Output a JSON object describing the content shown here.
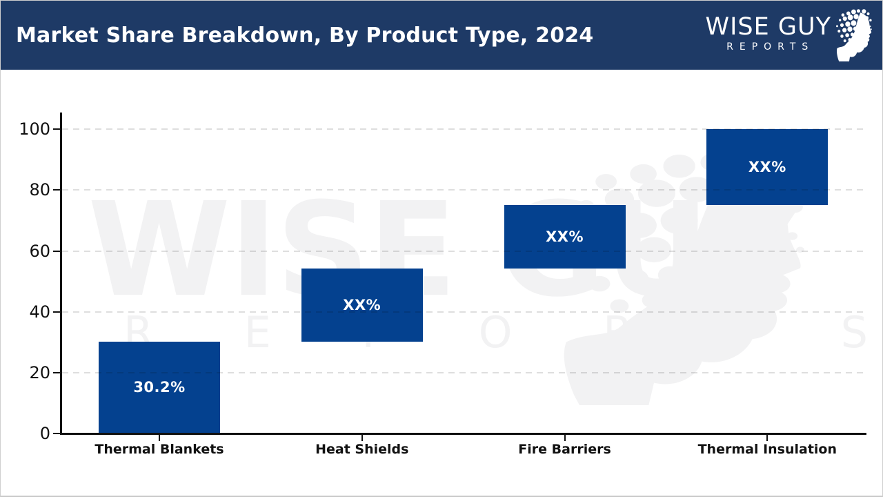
{
  "header": {
    "title": "Market Share Breakdown, By Product Type, 2024",
    "logo_line1": "WISE GUY",
    "logo_line2": "REPORTS"
  },
  "watermark": {
    "line1": "WISE GUY",
    "line2": "R E P O R T S"
  },
  "chart_data": {
    "type": "bar",
    "subtype": "waterfall",
    "title": "Market Share Breakdown, By Product Type, 2024",
    "categories": [
      "Thermal Blankets",
      "Heat Shields",
      "Fire Barriers",
      "Thermal Insulation"
    ],
    "segments": [
      {
        "category": "Thermal Blankets",
        "start": 0,
        "end": 30.2,
        "label": "30.2%"
      },
      {
        "category": "Heat Shields",
        "start": 30.2,
        "end": 54.3,
        "label": "XX%"
      },
      {
        "category": "Fire Barriers",
        "start": 54.3,
        "end": 75.2,
        "label": "XX%"
      },
      {
        "category": "Thermal Insulation",
        "start": 75.2,
        "end": 100,
        "label": "XX%"
      }
    ],
    "ylim": [
      0,
      100
    ],
    "yticks": [
      0,
      20,
      40,
      60,
      80,
      100
    ],
    "xlabel": "",
    "ylabel": "",
    "grid": "horizontal-dashed-over-bars",
    "legend": "none",
    "bar_color": "#04418f",
    "value_label_color": "#ffffff"
  },
  "colors": {
    "header_bg": "#1e3a66",
    "bar": "#04418f",
    "watermark": "#f2f2f3",
    "axis": "#111111",
    "page_border": "#cfcfcf"
  }
}
